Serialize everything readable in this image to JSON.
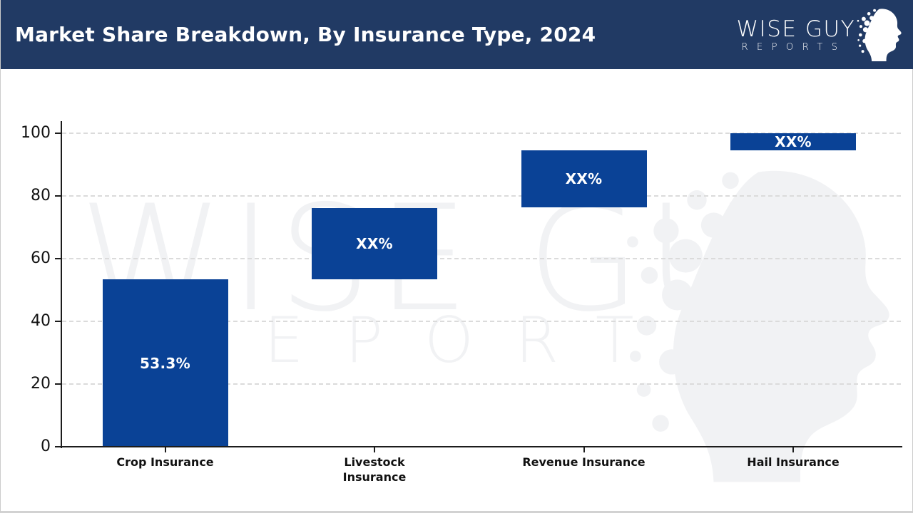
{
  "header": {
    "title": "Market Share Breakdown, By Insurance Type, 2024",
    "logo": {
      "line1": "WISE GUY",
      "line2": "REPORTS"
    }
  },
  "watermark": {
    "line1": "WISE GUY",
    "line2": "REPORTS"
  },
  "colors": {
    "header_bg": "#213a64",
    "bar_blue": "#0a4296",
    "grid": "#dbdbdb",
    "axis": "#1c1c1c",
    "watermark": "#f1f2f4"
  },
  "chart_data": {
    "type": "bar",
    "subtype": "waterfall",
    "title": "Market Share Breakdown, By Insurance Type, 2024",
    "categories": [
      "Crop Insurance",
      "Livestock\nInsurance",
      "Revenue Insurance",
      "Hail Insurance"
    ],
    "bars": [
      {
        "category": "Crop Insurance",
        "label": "53.3%",
        "start": 0,
        "end": 53.3
      },
      {
        "category": "Livestock Insurance",
        "label": "XX%",
        "start": 53.5,
        "end": 76.2
      },
      {
        "category": "Revenue Insurance",
        "label": "XX%",
        "start": 76.3,
        "end": 94.5
      },
      {
        "category": "Hail Insurance",
        "label": "XX%",
        "start": 94.6,
        "end": 100
      }
    ],
    "yticks": [
      0,
      20,
      40,
      60,
      80,
      100
    ],
    "ylim": [
      0,
      104
    ],
    "xlabel": "",
    "ylabel": "",
    "grid": "horizontal-dashed",
    "legend": "none",
    "bar_color": "#0a4296",
    "value_label_color": "#ffffff"
  }
}
